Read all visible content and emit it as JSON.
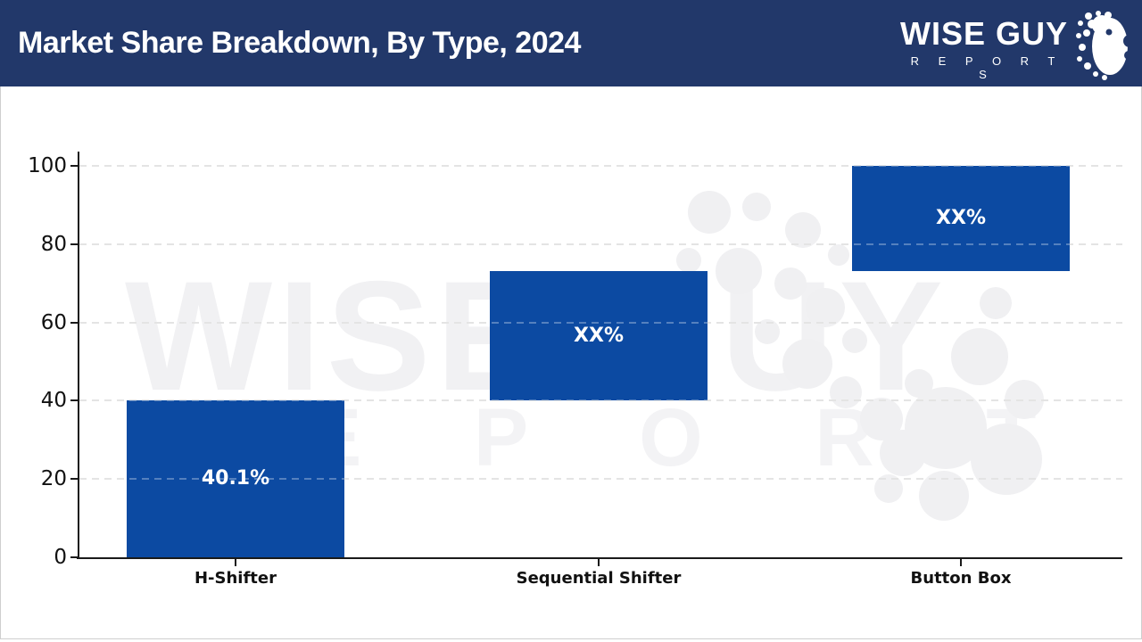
{
  "header": {
    "title": "Market Share Breakdown, By Type, 2024",
    "logo": {
      "name_line": "WISE GUY",
      "sub_line": "R E P O R T S"
    }
  },
  "watermark": {
    "big_text": "WISE GUY",
    "sub_text": "R E P O R T S"
  },
  "chart_data": {
    "type": "bar",
    "subtype": "waterfall",
    "title": "Market Share Breakdown, By Type, 2024",
    "categories": [
      "H-Shifter",
      "Sequential Shifter",
      "Button Box"
    ],
    "bars": [
      {
        "category": "H-Shifter",
        "start": 0,
        "end": 40.1,
        "label": "40.1%"
      },
      {
        "category": "Sequential Shifter",
        "start": 40.1,
        "end": 73.2,
        "label": "XX%"
      },
      {
        "category": "Button Box",
        "start": 73.2,
        "end": 100,
        "label": "XX%"
      }
    ],
    "xlabel": "",
    "ylabel": "",
    "ylim": [
      0,
      100
    ],
    "yticks": [
      0,
      20,
      40,
      60,
      80,
      100
    ],
    "grid": "horizontal-dashed",
    "legend": "none",
    "bar_color": "#0C4AA2",
    "bar_label_color": "#FFFFFF",
    "axis_color": "#1A1A1A",
    "grid_color": "#D8D8D8",
    "header_bg": "#22386A",
    "title_color": "#FFFFFF"
  }
}
